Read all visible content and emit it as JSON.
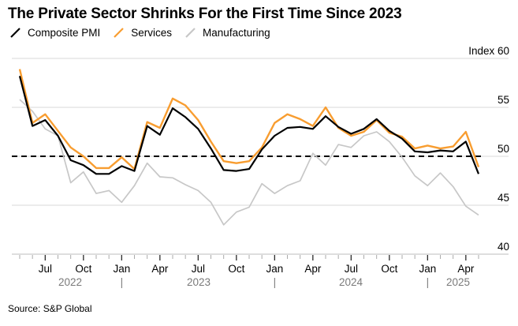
{
  "source": "Source: S&P Global",
  "colors": {
    "composite": "#000000",
    "services": "#F89D30",
    "manufacturing": "#C7C7C7",
    "gridline": "#D9D9D9",
    "axis_baseline": "#C9C9C9",
    "tick_minor": "#ABABAB",
    "tick_major": "#2A2A2A",
    "year_text": "#7A7A7A",
    "reference_dash": "#000000"
  },
  "y_axis": {
    "labels": [
      {
        "text": "Index 60",
        "value": 60
      },
      {
        "text": "55",
        "value": 55
      },
      {
        "text": "50",
        "value": 50
      },
      {
        "text": "45",
        "value": 45
      },
      {
        "text": "40",
        "value": 40
      }
    ]
  },
  "x_axis": {
    "month_ticks": [
      {
        "label": "Jul",
        "month_offset": 3
      },
      {
        "label": "Oct",
        "month_offset": 6
      },
      {
        "label": "Jan",
        "month_offset": 9
      },
      {
        "label": "Apr",
        "month_offset": 12
      },
      {
        "label": "Jul",
        "month_offset": 15
      },
      {
        "label": "Oct",
        "month_offset": 18
      },
      {
        "label": "Jan",
        "month_offset": 21
      },
      {
        "label": "Apr",
        "month_offset": 24
      },
      {
        "label": "Jul",
        "month_offset": 27
      },
      {
        "label": "Oct",
        "month_offset": 30
      },
      {
        "label": "Jan",
        "month_offset": 33
      },
      {
        "label": "Apr",
        "month_offset": 36
      }
    ],
    "years": [
      "2022",
      "2023",
      "2024",
      "2025"
    ],
    "year_separator": "|"
  },
  "chart_data": {
    "type": "line",
    "title": "The Private Sector Shrinks For the First Time Since 2023",
    "xlabel": "",
    "ylabel": "Index",
    "ylim": [
      40,
      60
    ],
    "grid": "horizontal",
    "legend_position": "top-left",
    "reference_line": 50,
    "categories": [
      "Apr 2022",
      "May 2022",
      "Jun 2022",
      "Jul 2022",
      "Aug 2022",
      "Sep 2022",
      "Oct 2022",
      "Nov 2022",
      "Dec 2022",
      "Jan 2023",
      "Feb 2023",
      "Mar 2023",
      "Apr 2023",
      "May 2023",
      "Jun 2023",
      "Jul 2023",
      "Aug 2023",
      "Sep 2023",
      "Oct 2023",
      "Nov 2023",
      "Dec 2023",
      "Jan 2024",
      "Feb 2024",
      "Mar 2024",
      "Apr 2024",
      "May 2024",
      "Jun 2024",
      "Jul 2024",
      "Aug 2024",
      "Sep 2024",
      "Oct 2024",
      "Nov 2024",
      "Dec 2024",
      "Jan 2025",
      "Feb 2025",
      "Mar 2025",
      "Apr 2025"
    ],
    "series": [
      {
        "name": "Composite PMI",
        "color": "#000000",
        "values": [
          58.2,
          53.1,
          53.7,
          52.1,
          49.6,
          49.1,
          48.2,
          48.2,
          49.0,
          48.5,
          53.1,
          52.2,
          54.9,
          54.0,
          52.8,
          50.8,
          48.6,
          48.5,
          48.7,
          50.7,
          52.1,
          52.9,
          53.0,
          52.8,
          54.1,
          53.0,
          52.3,
          52.8,
          53.8,
          52.6,
          51.8,
          50.5,
          50.4,
          50.6,
          50.5,
          51.5,
          48.2
        ]
      },
      {
        "name": "Services",
        "color": "#F89D30",
        "values": [
          58.9,
          53.4,
          54.3,
          52.6,
          50.9,
          50.0,
          48.8,
          48.8,
          49.9,
          48.7,
          53.5,
          52.9,
          55.9,
          55.2,
          53.7,
          51.5,
          49.5,
          49.3,
          49.5,
          50.9,
          53.4,
          54.3,
          53.8,
          53.1,
          55.0,
          52.9,
          52.1,
          52.5,
          53.7,
          52.4,
          52.0,
          50.8,
          51.1,
          50.8,
          51.0,
          52.5,
          48.9
        ]
      },
      {
        "name": "Manufacturing",
        "color": "#C7C7C7",
        "values": [
          55.8,
          54.6,
          52.8,
          52.1,
          47.3,
          48.4,
          46.2,
          46.5,
          45.3,
          47.0,
          49.3,
          47.9,
          47.8,
          47.1,
          46.5,
          45.3,
          43.0,
          44.3,
          44.8,
          47.2,
          46.2,
          47.0,
          47.5,
          50.3,
          49.1,
          51.2,
          50.9,
          52.1,
          52.5,
          51.5,
          49.9,
          48.0,
          47.0,
          48.3,
          46.9,
          44.9,
          44.0
        ]
      }
    ]
  }
}
